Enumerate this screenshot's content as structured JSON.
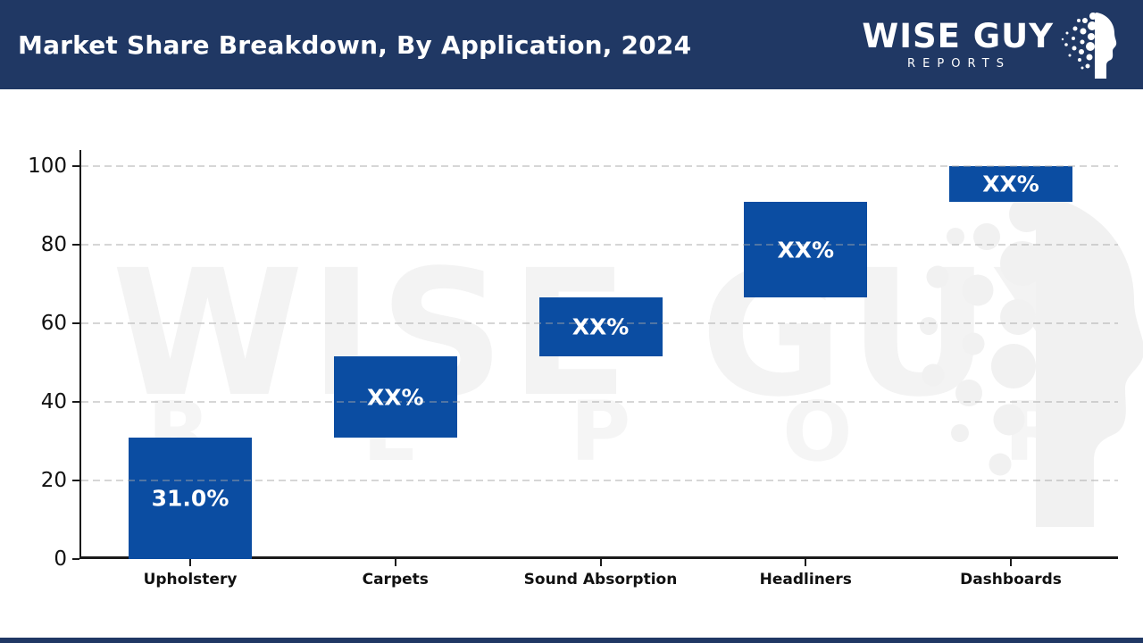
{
  "header": {
    "title": "Market Share Breakdown, By Application, 2024",
    "logo_line1": "WISE GUY",
    "logo_line2": "REPORTS",
    "bg_color": "#203864"
  },
  "watermark": {
    "line1": "WISE GUY",
    "line2": "R E P O R T S"
  },
  "chart_data": {
    "type": "bar",
    "subtype": "waterfall",
    "title": "Market Share Breakdown, By Application, 2024",
    "categories": [
      "Upholstery",
      "Carpets",
      "Sound Absorption",
      "Headliners",
      "Dashboards"
    ],
    "segments": [
      {
        "category": "Upholstery",
        "label": "31.0%",
        "start": 0,
        "end": 31.0
      },
      {
        "category": "Carpets",
        "label": "XX%",
        "start": 31.0,
        "end": 51.5
      },
      {
        "category": "Sound Absorption",
        "label": "XX%",
        "start": 51.5,
        "end": 66.5
      },
      {
        "category": "Headliners",
        "label": "XX%",
        "start": 66.5,
        "end": 91.0
      },
      {
        "category": "Dashboards",
        "label": "XX%",
        "start": 91.0,
        "end": 100.0
      }
    ],
    "yticks": [
      0,
      20,
      40,
      60,
      80,
      100
    ],
    "ylim": [
      0,
      104
    ],
    "xlabel": "",
    "ylabel": "",
    "grid": true,
    "legend": false,
    "bar_color": "#0b4da2",
    "label_color": "#ffffff"
  }
}
